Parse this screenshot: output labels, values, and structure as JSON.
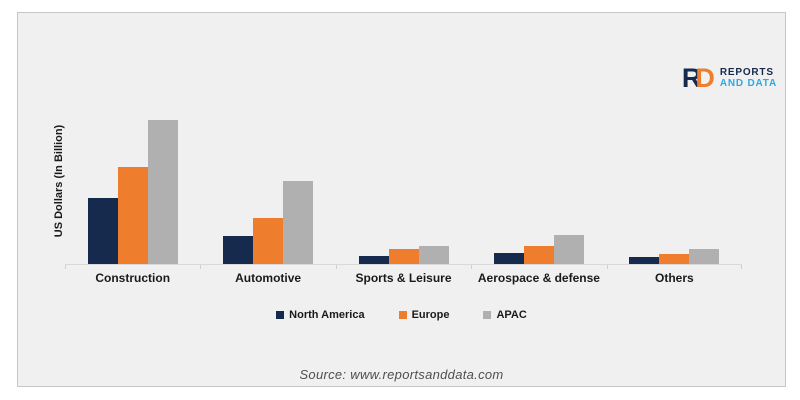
{
  "logo": {
    "mark_r": "R",
    "mark_d": "D",
    "line1": "REPORTS",
    "line2": "AND DATA",
    "navy": "#152a4c",
    "orange": "#ee7d2d",
    "cyan": "#29abe2"
  },
  "chart_data": {
    "type": "bar",
    "title": "",
    "xlabel": "",
    "ylabel": "US Dollars (In Billion)",
    "categories": [
      "Construction",
      "Automotive",
      "Sports & Leisure",
      "Aerospace & defense",
      "Others"
    ],
    "series": [
      {
        "name": "North America",
        "color": "#152a4c",
        "values": [
          6.6,
          2.8,
          0.8,
          1.1,
          0.7
        ]
      },
      {
        "name": "Europe",
        "color": "#ee7d2d",
        "values": [
          9.8,
          4.6,
          1.5,
          1.8,
          1.0
        ]
      },
      {
        "name": "APAC",
        "color": "#b0b0b0",
        "values": [
          14.5,
          8.4,
          1.8,
          2.9,
          1.5
        ]
      }
    ],
    "ylim": [
      0,
      16
    ],
    "grid": false,
    "legend_position": "bottom",
    "axis_color": "#d9d9d9",
    "panel_background": "#f0f0f0"
  },
  "source": {
    "text": "Source: www.reportsanddata.com"
  }
}
